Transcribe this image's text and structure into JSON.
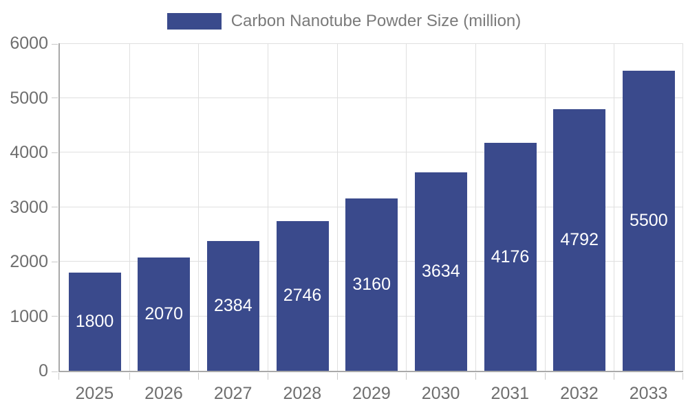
{
  "legend": {
    "label": "Carbon Nanotube Powder Size (million)"
  },
  "chart_data": {
    "type": "bar",
    "title": "",
    "xlabel": "",
    "ylabel": "",
    "categories": [
      "2025",
      "2026",
      "2027",
      "2028",
      "2029",
      "2030",
      "2031",
      "2032",
      "2033"
    ],
    "values": [
      1800,
      2070,
      2384,
      2746,
      3160,
      3634,
      4176,
      4792,
      5500
    ],
    "series": [
      {
        "name": "Carbon Nanotube Powder Size (million)",
        "values": [
          1800,
          2070,
          2384,
          2746,
          3160,
          3634,
          4176,
          4792,
          5500
        ]
      }
    ],
    "ylim": [
      0,
      6000
    ],
    "ytick_step": 1000,
    "yticks": [
      "0",
      "1000",
      "2000",
      "3000",
      "4000",
      "5000",
      "6000"
    ],
    "grid": true,
    "legend_position": "top-center",
    "bar_label_position": "inside-center",
    "colors": {
      "bar": "#3A4A8C",
      "bar_label": "#FFFFFF",
      "grid": "#DFDFDF",
      "axis": "#A9A9A9",
      "tick_text": "#6E6E6E",
      "legend_text": "#7A7A7A",
      "background": "#FFFFFF"
    }
  }
}
